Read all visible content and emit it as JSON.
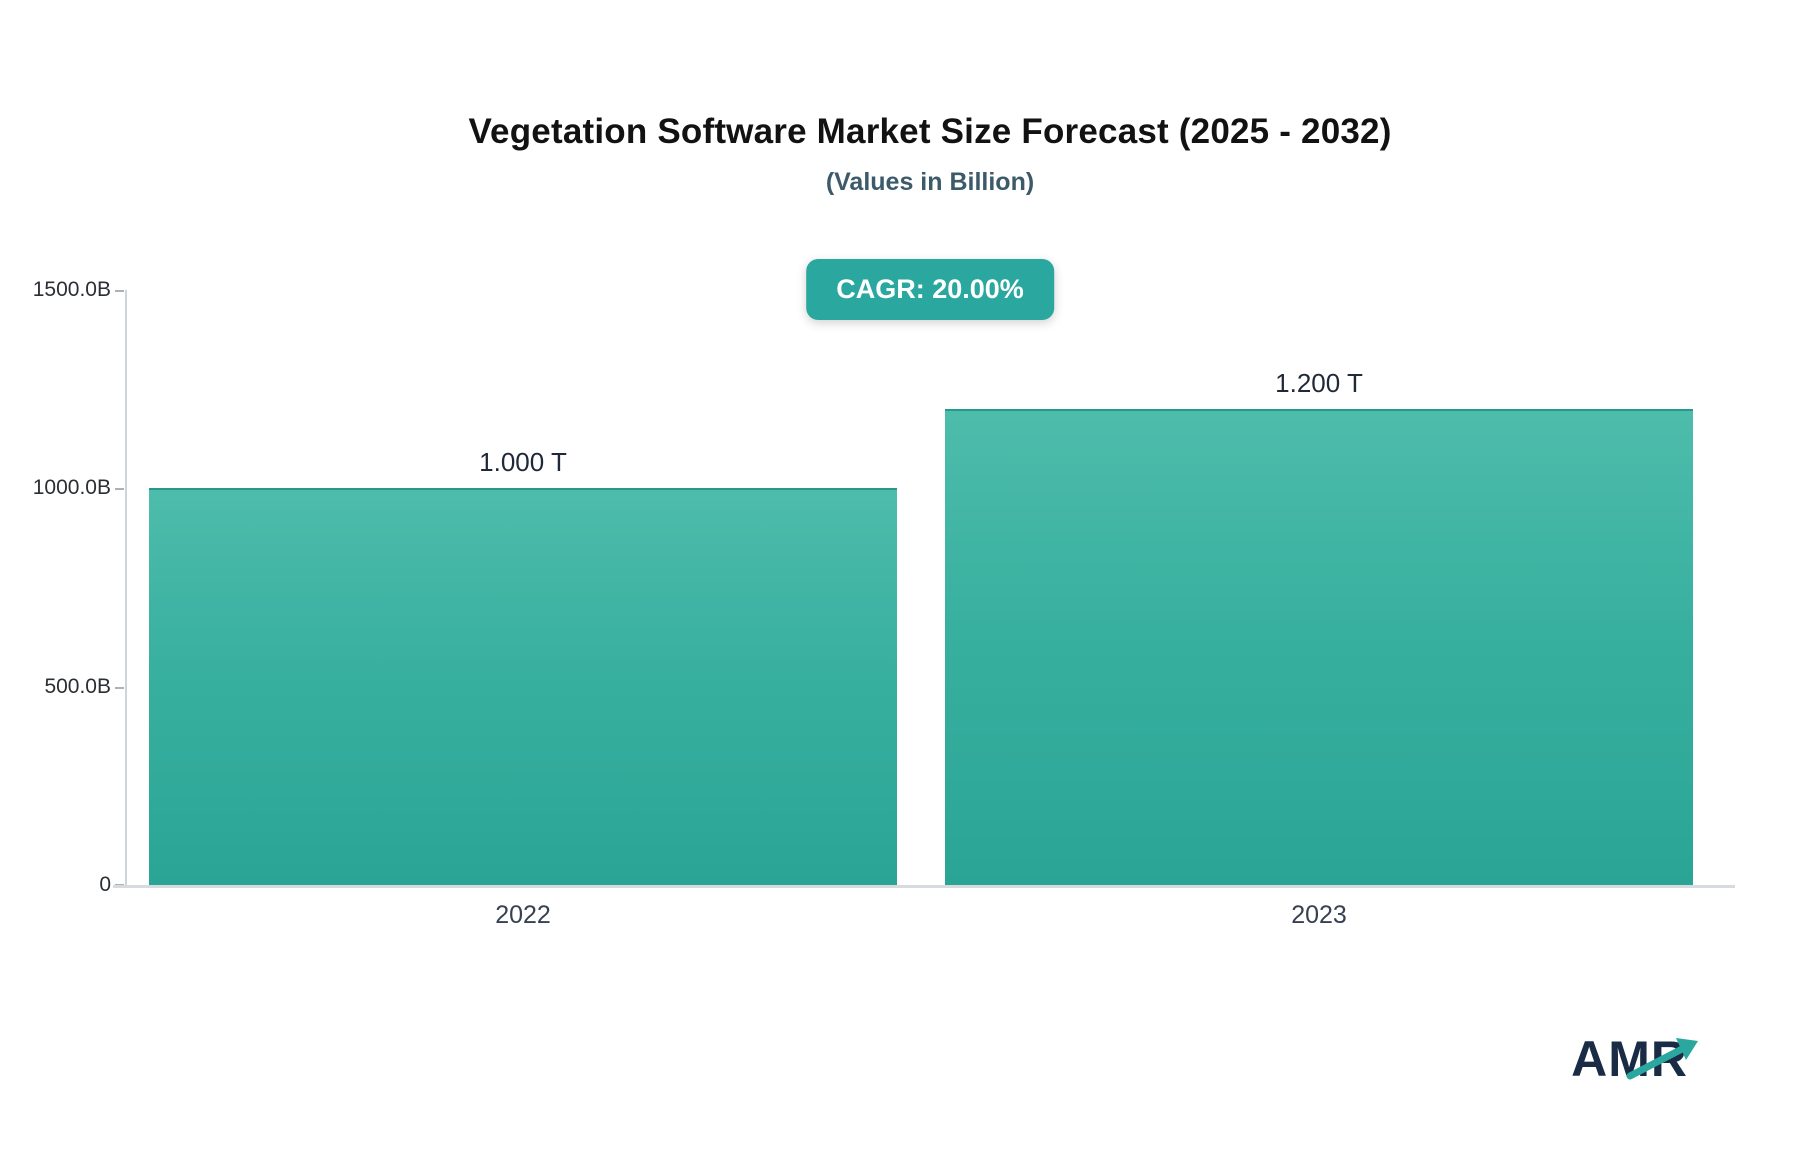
{
  "chart_data": {
    "type": "bar",
    "title": "Vegetation Software Market Size Forecast (2025 - 2032)",
    "subtitle": "(Values in Billion)",
    "badge": "CAGR: 20.00%",
    "categories": [
      "2022",
      "2023"
    ],
    "values": [
      1000,
      1200
    ],
    "value_labels": [
      "1.000 T",
      "1.200 T"
    ],
    "unit": "Billion",
    "y_ticks": [
      "1500.0B",
      "1000.0B",
      "500.0B",
      "0"
    ],
    "ylim": [
      0,
      1500
    ],
    "grid": "off",
    "legend": "none",
    "colors": {
      "bar_gradient_top": "#4ebcab",
      "bar_gradient_bottom": "#2aa595",
      "badge_background": "#2aa8a0",
      "title_text": "#121212",
      "subtitle_text": "#3d5a6b",
      "axis_line": "#cfd4da"
    }
  },
  "logo": {
    "text": "AMR",
    "arrow_color": "#2aa79e"
  }
}
